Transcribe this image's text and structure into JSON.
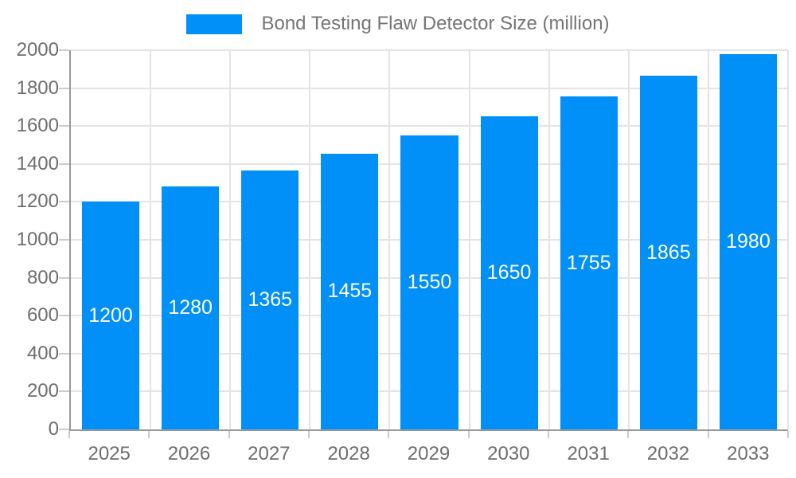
{
  "chart_data": {
    "type": "bar",
    "title": "",
    "legend_label": "Bond Testing Flaw Detector Size (million)",
    "legend_position": "top-center",
    "categories": [
      "2025",
      "2026",
      "2027",
      "2028",
      "2029",
      "2030",
      "2031",
      "2032",
      "2033"
    ],
    "values": [
      1200,
      1280,
      1365,
      1455,
      1550,
      1650,
      1755,
      1865,
      1980
    ],
    "xlabel": "",
    "ylabel": "",
    "ylim": [
      0,
      2000
    ],
    "yticks": [
      0,
      200,
      400,
      600,
      800,
      1000,
      1200,
      1400,
      1600,
      1800,
      2000
    ],
    "grid": "horizontal lines every 200 and vertical lines at category boundaries",
    "bar_labels_inside": true,
    "colors": {
      "bar": "#0190f8",
      "bar_label": "#ffffff",
      "axis_line": "#999999",
      "gridline": "#e4e4e4",
      "tick": "#cccccc",
      "axis_label": "#6e6e6e",
      "legend_text": "#757575"
    }
  }
}
